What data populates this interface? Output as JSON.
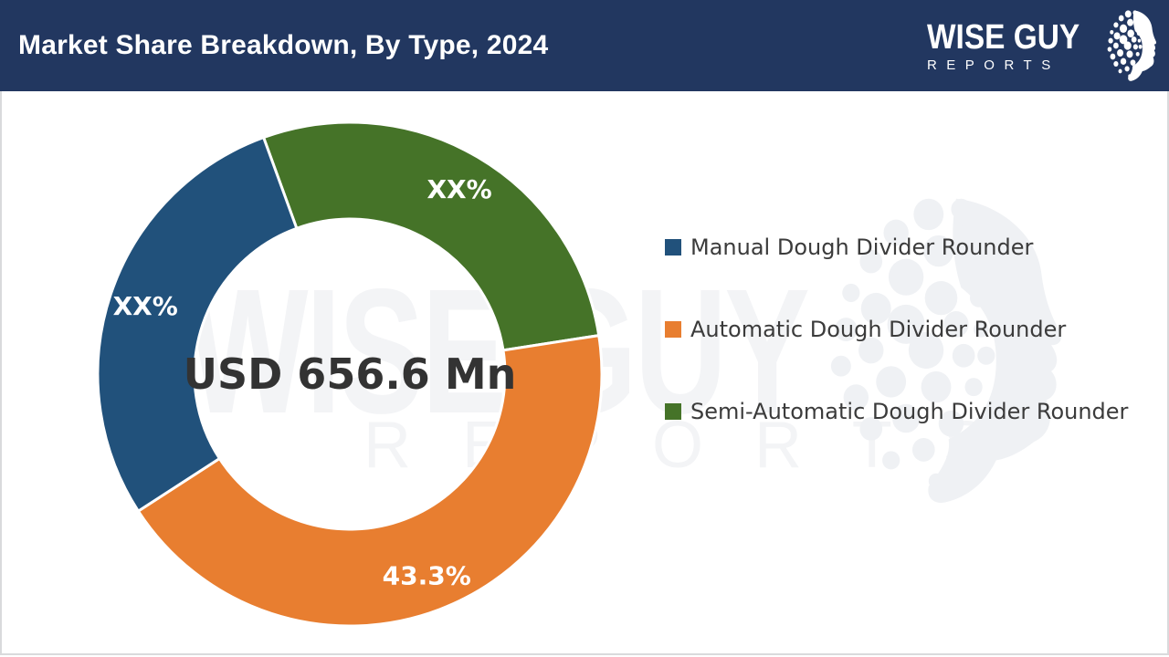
{
  "header": {
    "title": "Market Share Breakdown, By Type, 2024",
    "logo": {
      "brand": "WISE GUY",
      "sub": "REPORTS"
    }
  },
  "watermark": {
    "brand": "WISE GUY",
    "sub": "REPORTS"
  },
  "chart_data": {
    "type": "donut",
    "center_label": "USD 656.6 Mn",
    "start_angle_deg": -20,
    "inner_radius_ratio": 0.62,
    "legend_position": "right",
    "segments": [
      {
        "name": "Semi-Automatic Dough Divider Rounder",
        "display_label": "XX%",
        "value_pct": 28.1,
        "color": "#457328"
      },
      {
        "name": "Automatic Dough Divider Rounder",
        "display_label": "43.3%",
        "value_pct": 43.3,
        "color": "#E87E30"
      },
      {
        "name": "Manual Dough Divider Rounder",
        "display_label": "XX%",
        "value_pct": 28.6,
        "color": "#21517B"
      }
    ]
  },
  "legend": {
    "items": [
      {
        "label": "Manual Dough Divider Rounder",
        "color": "#21517B"
      },
      {
        "label": "Automatic Dough Divider Rounder",
        "color": "#E87E30"
      },
      {
        "label": "Semi-Automatic Dough Divider Rounder",
        "color": "#457328"
      }
    ]
  },
  "theme": {
    "header_bg": "#223760",
    "header_text": "#ffffff",
    "panel_border": "#d9dadc",
    "center_text": "#333333",
    "legend_text": "#3b3b3b",
    "watermark": "#f3f4f6"
  }
}
